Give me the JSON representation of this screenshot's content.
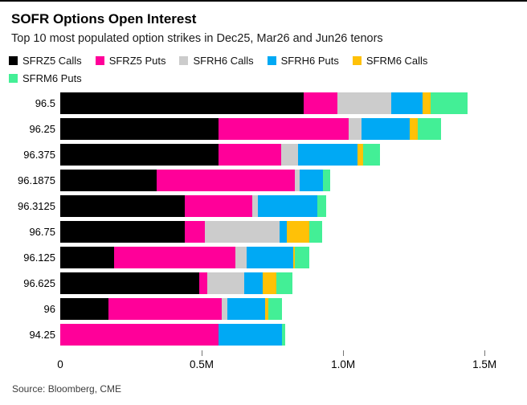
{
  "source": "Source: Bloomberg, CME",
  "chart_data": {
    "type": "bar",
    "orientation": "horizontal",
    "stacked": true,
    "title": "SOFR Options Open Interest",
    "subtitle": "Top 10 most populated option strikes in Dec25, Mar26 and Jun26 tenors",
    "grid": false,
    "legend_position": "top",
    "categories": [
      "96.5",
      "96.25",
      "96.375",
      "96.1875",
      "96.3125",
      "96.75",
      "96.125",
      "96.625",
      "96",
      "94.25"
    ],
    "series": [
      {
        "name": "SFRZ5 Calls",
        "color": "#000000",
        "values": [
          0.86,
          0.56,
          0.56,
          0.34,
          0.44,
          0.44,
          0.19,
          0.49,
          0.17,
          0
        ]
      },
      {
        "name": "SFRZ5 Puts",
        "color": "#FF0099",
        "values": [
          0.12,
          0.46,
          0.22,
          0.49,
          0.24,
          0.07,
          0.43,
          0.03,
          0.4,
          0.56
        ]
      },
      {
        "name": "SFRH6 Calls",
        "color": "#CCCCCC",
        "values": [
          0.19,
          0.045,
          0.06,
          0.015,
          0.02,
          0.265,
          0.04,
          0.13,
          0.02,
          0
        ]
      },
      {
        "name": "SFRH6 Puts",
        "color": "#00A9F4",
        "values": [
          0.11,
          0.17,
          0.21,
          0.085,
          0.21,
          0.025,
          0.165,
          0.065,
          0.135,
          0.225
        ]
      },
      {
        "name": "SFRM6 Calls",
        "color": "#FFC107",
        "values": [
          0.03,
          0.03,
          0.02,
          0,
          0,
          0.08,
          0.005,
          0.05,
          0.01,
          0
        ]
      },
      {
        "name": "SFRM6 Puts",
        "color": "#43EF96",
        "values": [
          0.13,
          0.08,
          0.06,
          0.025,
          0.03,
          0.045,
          0.05,
          0.055,
          0.05,
          0.01
        ]
      }
    ],
    "x_axis": {
      "max": 1.65,
      "ticks": [
        {
          "value": 0,
          "label": "0",
          "has_mark": false
        },
        {
          "value": 0.5,
          "label": "0.5M",
          "has_mark": true
        },
        {
          "value": 1.0,
          "label": "1.0M",
          "has_mark": true
        },
        {
          "value": 1.5,
          "label": "1.5M",
          "has_mark": true
        }
      ]
    }
  }
}
